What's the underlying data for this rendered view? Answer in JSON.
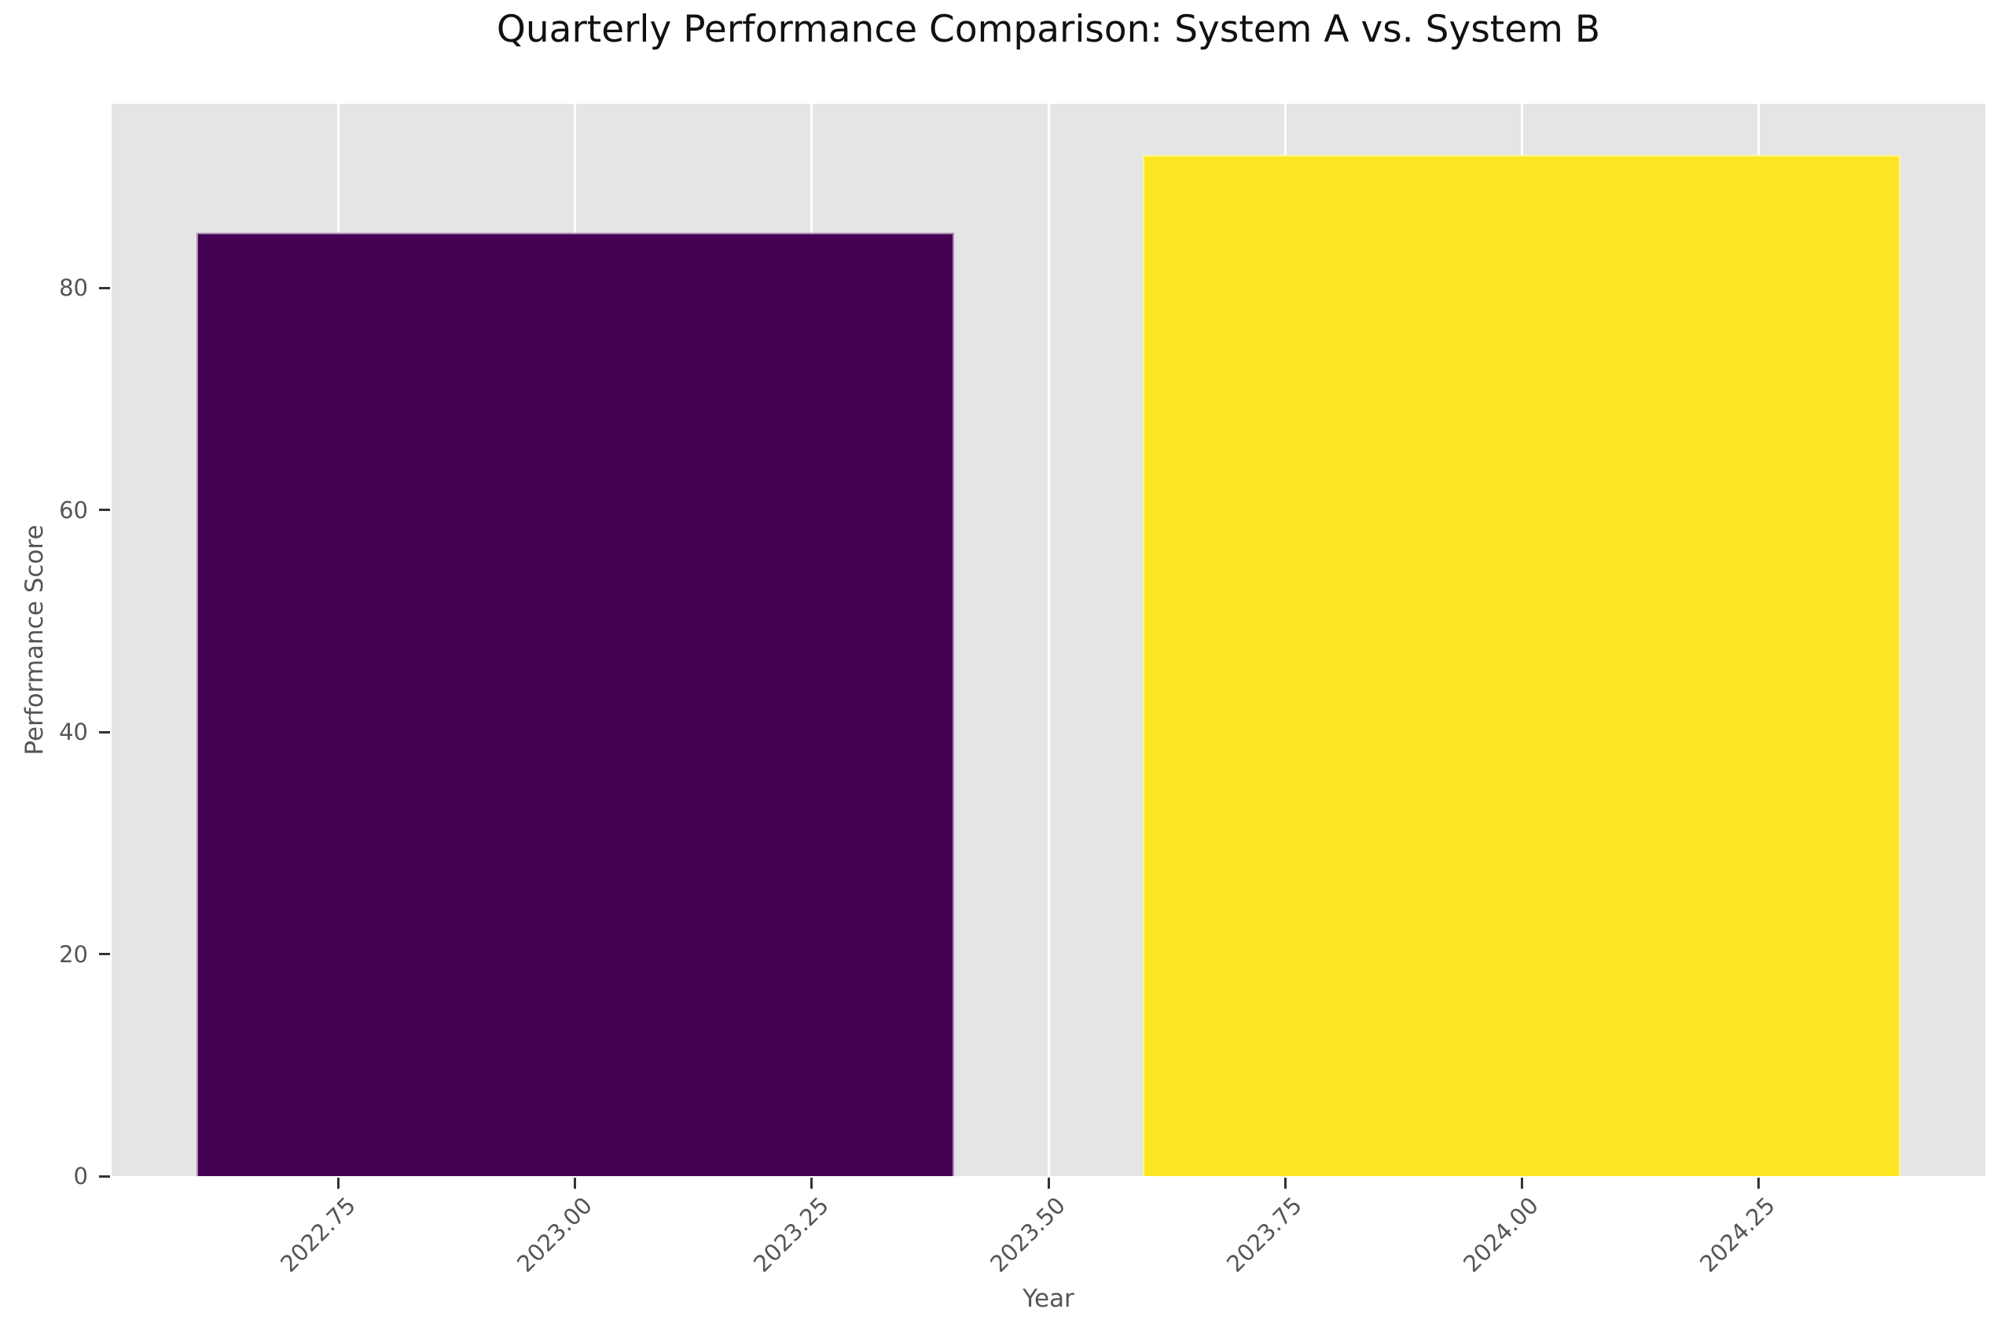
{
  "figure": {
    "background_color": "#ffffff",
    "plot_background_color": "#e5e5e5",
    "grid_color": "#ffffff",
    "tick_mark_color": "#333333",
    "tick_label_color": "#555555",
    "axis_label_color": "#555555",
    "title_color": "#111111"
  },
  "chart_data": {
    "type": "bar",
    "title": "Quarterly Performance Comparison: System A vs. System B",
    "xlabel": "Year",
    "ylabel": "Performance Score",
    "series": [
      {
        "name": "System A",
        "x_center": 2023.0,
        "value": 85,
        "color": "#440154"
      },
      {
        "name": "System B",
        "x_center": 2024.0,
        "value": 92,
        "color": "#fde725"
      }
    ],
    "bar_width": 0.8,
    "xlim": [
      2022.51,
      2024.49
    ],
    "ylim": [
      0,
      96.6
    ],
    "x_ticks": [
      2022.75,
      2023.0,
      2023.25,
      2023.5,
      2023.75,
      2024.0,
      2024.25
    ],
    "x_tick_labels": [
      "2022.75",
      "2023.00",
      "2023.25",
      "2023.50",
      "2023.75",
      "2024.00",
      "2024.25"
    ],
    "x_tick_rotation_deg": 45,
    "y_ticks": [
      0,
      20,
      40,
      60,
      80
    ],
    "y_tick_labels": [
      "0",
      "20",
      "40",
      "60",
      "80"
    ],
    "grid": "vertical-only",
    "legend": "none"
  }
}
